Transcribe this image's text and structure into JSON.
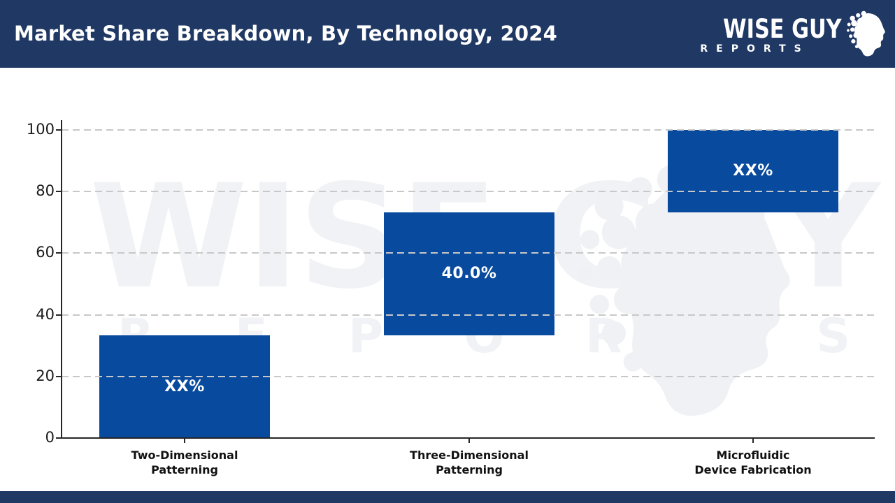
{
  "header": {
    "title": "Market Share Breakdown, By Technology, 2024",
    "bg_color": "#1f3864",
    "logo": {
      "line1": "WISE GUY",
      "line2": "REPORTS"
    }
  },
  "watermark": {
    "line1": "WISE GUY",
    "line2": "R E P O R T S",
    "color": "#f1f2f5"
  },
  "chart_data": {
    "type": "bar",
    "subtype": "floating-segment waterfall",
    "title": "Market Share Breakdown, By Technology, 2024",
    "categories": [
      "Two-Dimensional Patterning",
      "Three-Dimensional Patterning",
      "Microfluidic Device Fabrication"
    ],
    "bars": [
      {
        "category": "Two-Dimensional Patterning",
        "category_lines": [
          "Two-Dimensional",
          "Patterning"
        ],
        "from": 0,
        "to": 33.3,
        "label": "XX%"
      },
      {
        "category": "Three-Dimensional Patterning",
        "category_lines": [
          "Three-Dimensional",
          "Patterning"
        ],
        "from": 33.3,
        "to": 73.3,
        "label": "40.0%",
        "value": 40.0
      },
      {
        "category": "Microfluidic Device Fabrication",
        "category_lines": [
          "Microfluidic",
          "Device Fabrication"
        ],
        "from": 73.3,
        "to": 100,
        "label": "XX%"
      }
    ],
    "yticks": [
      0,
      20,
      40,
      60,
      80,
      100
    ],
    "ylim": [
      0,
      103
    ],
    "grid": "horizontal dashed gray, drawn over bars",
    "bar_color": "#084a9e",
    "bar_label_color": "#ffffff",
    "axis_color": "#262626",
    "xlabel": "",
    "ylabel": ""
  },
  "footer": {
    "bg_color": "#1f3864"
  }
}
